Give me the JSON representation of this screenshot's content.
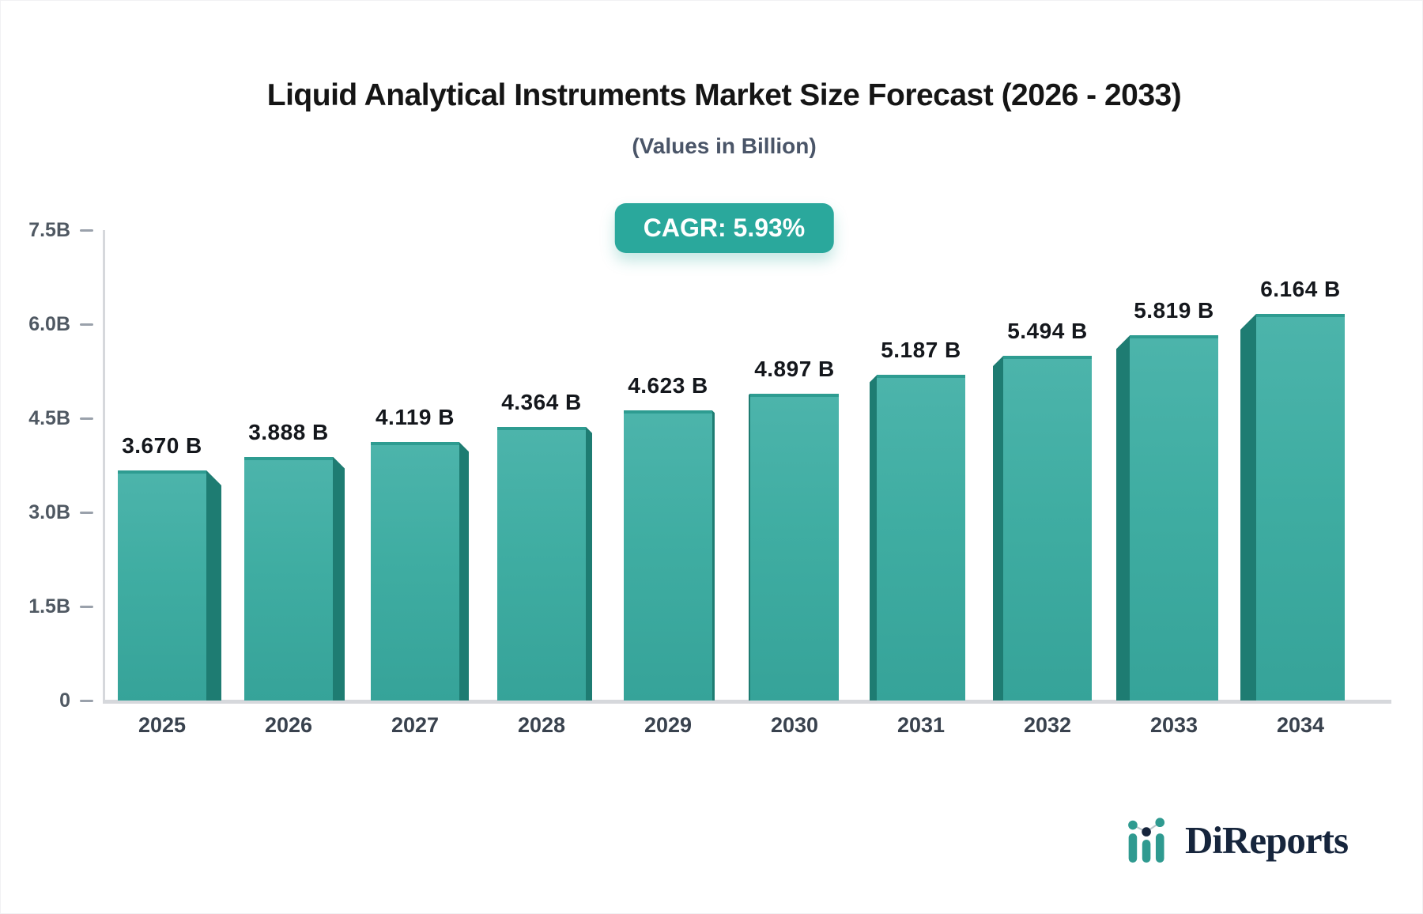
{
  "title": "Liquid Analytical Instruments Market Size Forecast (2026 - 2033)",
  "subtitle": "(Values in Billion)",
  "badge": {
    "label": "CAGR: 5.93%",
    "color": "#2aa89c"
  },
  "watermark": {
    "brand": "DiReports"
  },
  "colors": {
    "bar_front_top": "#4cb4ab",
    "bar_front_bottom": "#36a399",
    "bar_top_edge": "#2e9c91",
    "bar_side": "#1e7c72",
    "axis_line": "#d6d8dc",
    "tick": "#9aa1ab",
    "logo_navy": "#16253c",
    "logo_teal": "#2f9a90"
  },
  "chart_data": {
    "type": "bar",
    "title": "Liquid Analytical Instruments Market Size Forecast (2026 - 2033)",
    "subtitle": "(Values in Billion)",
    "unit": "Billion",
    "cagr_percent": 5.93,
    "categories": [
      "2025",
      "2026",
      "2027",
      "2028",
      "2029",
      "2030",
      "2031",
      "2032",
      "2033",
      "2034"
    ],
    "values": [
      3.67,
      3.888,
      4.119,
      4.364,
      4.623,
      4.897,
      5.187,
      5.494,
      5.819,
      6.164
    ],
    "value_labels": [
      "3.670 B",
      "3.888 B",
      "4.119 B",
      "4.364 B",
      "4.623 B",
      "4.897 B",
      "5.187 B",
      "5.494 B",
      "5.819 B",
      "6.164 B"
    ],
    "xlabel": "",
    "ylabel": "",
    "ylim": [
      0,
      7.5
    ],
    "y_ticks": [
      {
        "value": 7.5,
        "label": "7.5B"
      },
      {
        "value": 6.0,
        "label": "6.0B"
      },
      {
        "value": 4.5,
        "label": "4.5B"
      },
      {
        "value": 3.0,
        "label": "3.0B"
      },
      {
        "value": 1.5,
        "label": "1.5B"
      },
      {
        "value": 0,
        "label": "0"
      }
    ],
    "grid": false,
    "legend": false,
    "style": "pseudo-3d-columns"
  }
}
